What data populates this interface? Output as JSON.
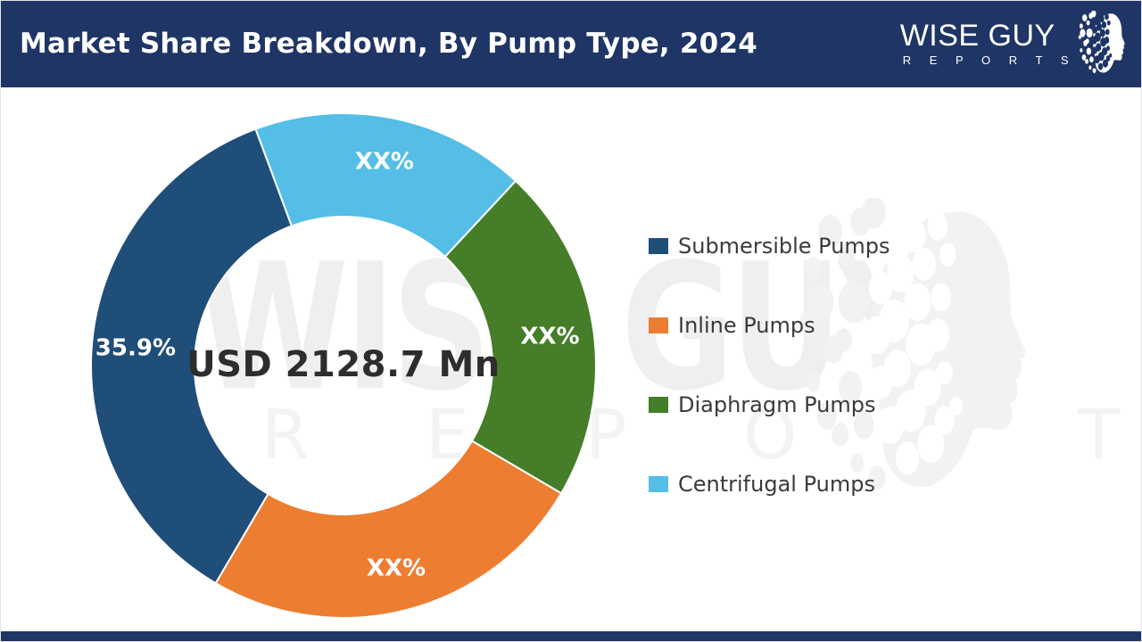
{
  "header": {
    "title": "Market Share Breakdown, By Pump Type, 2024",
    "logo": {
      "brand_line1": "WISE GUY",
      "brand_line2": "R E P O R T S"
    }
  },
  "chart_data": {
    "type": "pie",
    "subtype": "donut",
    "title": "Market Share Breakdown, By Pump Type, 2024",
    "center_label": "USD 2128.7 Mn",
    "segments": [
      {
        "name": "Submersible Pumps",
        "label": "35.9%",
        "value": 35.9,
        "color": "#1F4E79"
      },
      {
        "name": "Inline Pumps",
        "label": "XX%",
        "value": 25.0,
        "color": "#ED7D31"
      },
      {
        "name": "Diaphragm Pumps",
        "label": "XX%",
        "value": 21.5,
        "color": "#457D28"
      },
      {
        "name": "Centrifugal Pumps",
        "label": "XX%",
        "value": 17.6,
        "color": "#55BEE6"
      }
    ],
    "layout": {
      "start_angle_deg": 210.4,
      "clockwise": true,
      "draw_order": [
        0,
        3,
        2,
        1
      ],
      "inner_radius_ratio": 0.59,
      "legend_position": "right",
      "label_color": "#FFFFFF"
    }
  },
  "watermark": {
    "line1": "WISE GUY",
    "line2": "R E P O R T S"
  },
  "colors": {
    "header_bar": "#1F3565",
    "footer_bar": "#1F3565",
    "background": "#FFFFFF",
    "center_text": "#2D2D2D",
    "legend_text": "#3A3A3A",
    "watermark": "#EFEFEF"
  }
}
